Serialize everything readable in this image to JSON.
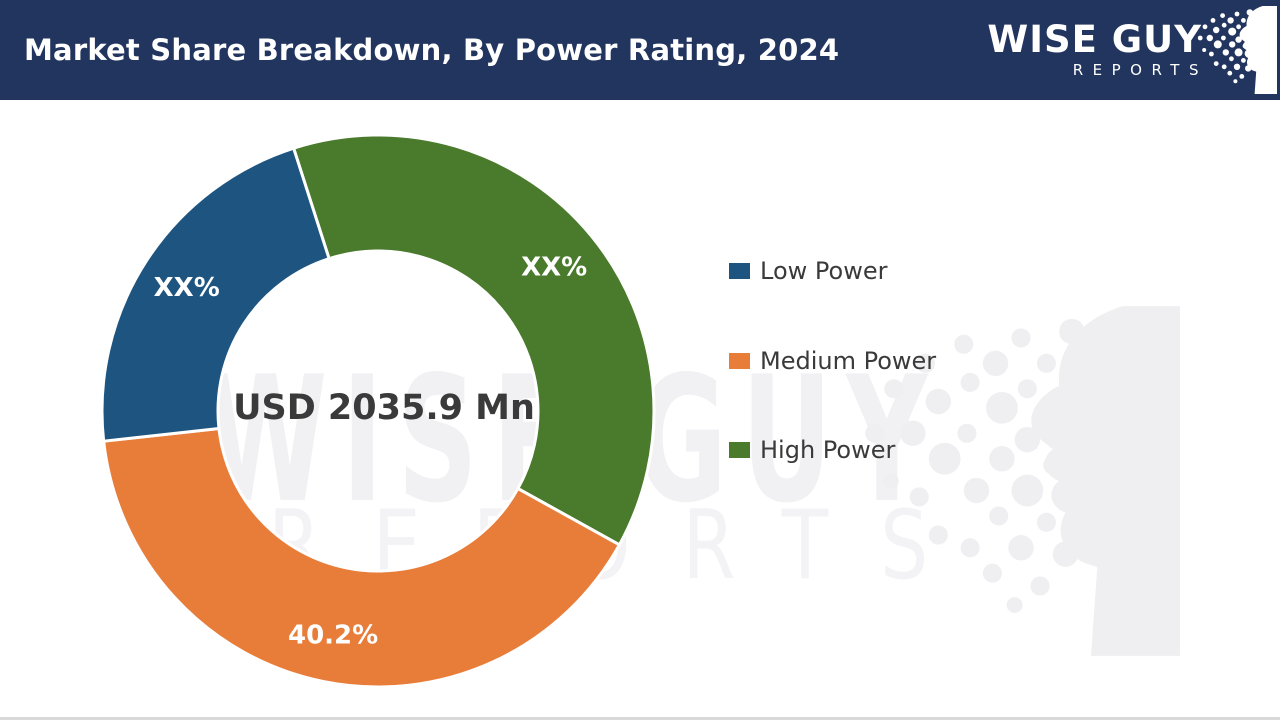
{
  "page": {
    "background": "#FFFFFF",
    "bottom_border_color": "#D9D9D9"
  },
  "header": {
    "background": "#22355F",
    "title": "Market Share Breakdown, By Power Rating, 2024",
    "logo": {
      "name": "WISE GUY",
      "sub": "REPORTS"
    }
  },
  "watermark": {
    "line1": "WISE GUY",
    "line2": "REPORTS"
  },
  "chart_data": {
    "type": "donut",
    "title": "Market Share Breakdown, By Power Rating, 2024",
    "center_label": "USD 2035.9 Mn",
    "start_angle_deg": -17.8,
    "legend_position": "right",
    "series": [
      {
        "name": "High Power",
        "value_pct": 38.0,
        "displayed_label": "XX%",
        "color": "#4A7A2C"
      },
      {
        "name": "Medium Power",
        "value_pct": 40.2,
        "displayed_label": "40.2%",
        "color": "#E87D3A"
      },
      {
        "name": "Low Power",
        "value_pct": 21.8,
        "displayed_label": "XX%",
        "color": "#1E5480"
      }
    ]
  },
  "legend": {
    "items": [
      {
        "label": "Low Power",
        "color": "#1E5480"
      },
      {
        "label": "Medium Power",
        "color": "#E87D3A"
      },
      {
        "label": "High Power",
        "color": "#4A7A2C"
      }
    ]
  }
}
